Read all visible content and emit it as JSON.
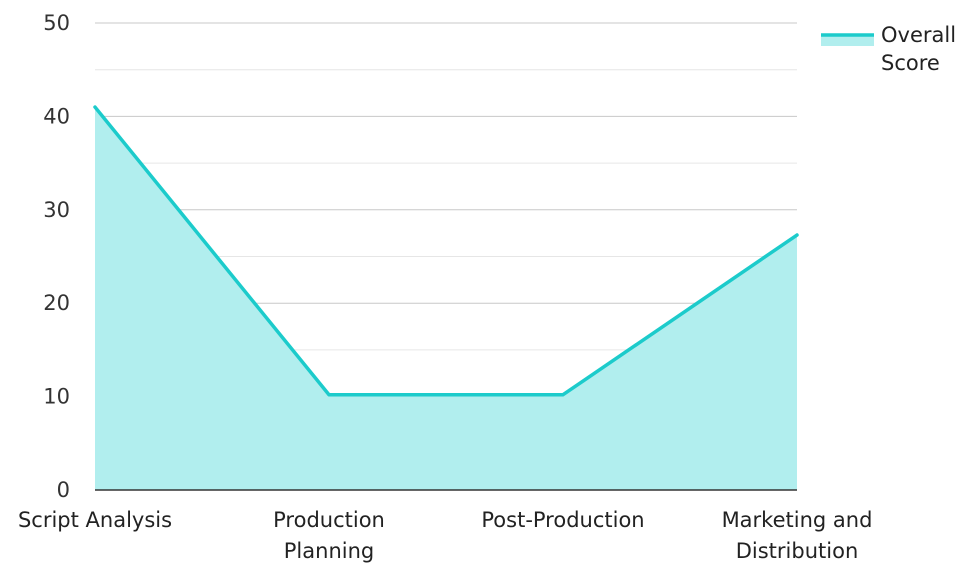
{
  "chart_data": {
    "type": "area",
    "categories": [
      "Script Analysis",
      "Production Planning",
      "Post-Production",
      "Marketing and Distribution"
    ],
    "series": [
      {
        "name": "Overall Score",
        "values": [
          41,
          10.2,
          10.2,
          27.3
        ]
      }
    ],
    "ylim": [
      0,
      50
    ],
    "yticks": [
      0,
      10,
      20,
      30,
      40,
      50
    ],
    "grid": true,
    "legend_position": "top-right",
    "colors": {
      "line": "#1ccbcb",
      "fill": "#b1eeee",
      "grid_major": "#c8c8c8",
      "grid_minor": "#e6e6e6",
      "axis": "#333333"
    }
  }
}
